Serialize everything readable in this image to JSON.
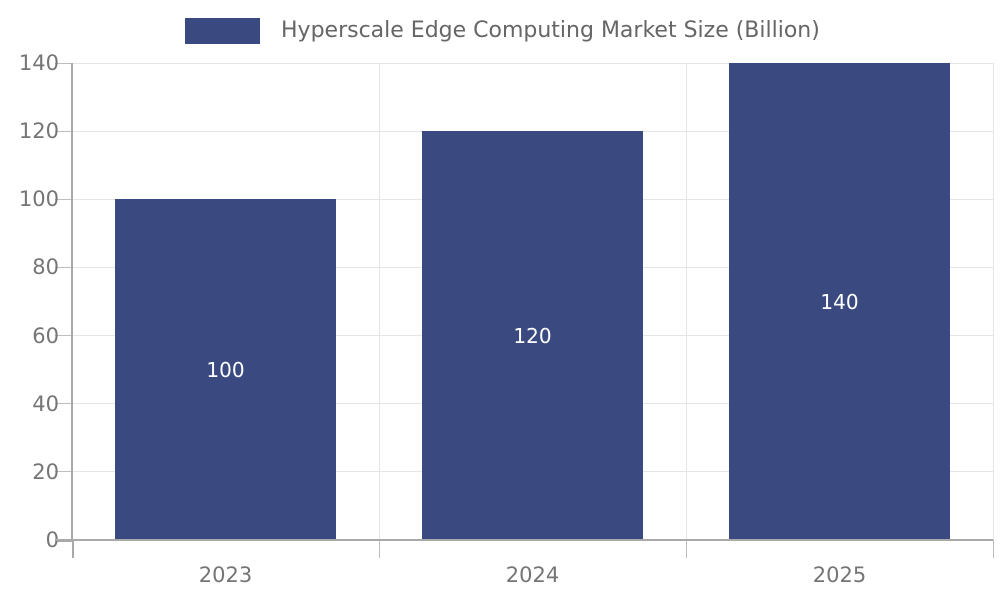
{
  "chart_data": {
    "type": "bar",
    "title": "Hyperscale Edge Computing Market Size (Billion)",
    "categories": [
      "2023",
      "2024",
      "2025"
    ],
    "values": [
      100,
      120,
      140
    ],
    "bar_value_labels": [
      "100",
      "120",
      "140"
    ],
    "xlabel": "",
    "ylabel": "",
    "ylim": [
      0,
      140
    ],
    "yticks": [
      0,
      20,
      40,
      60,
      80,
      100,
      120,
      140
    ],
    "grid": "on",
    "legend": {
      "position": "top-center",
      "entries": [
        "Hyperscale Edge Computing Market Size (Billion)"
      ]
    }
  },
  "legend": {
    "label": "Hyperscale Edge Computing Market Size (Billion)"
  },
  "colors": {
    "bar_fill": "#3A4A80",
    "gridline": "#E5E5E5",
    "axis_line": "#A9A9A9",
    "tick_mark": "#BDBDBD",
    "tick_label_text": "#757575",
    "legend_text": "#666666",
    "value_label_text": "#FFFFFF",
    "background": "#FFFFFF"
  }
}
